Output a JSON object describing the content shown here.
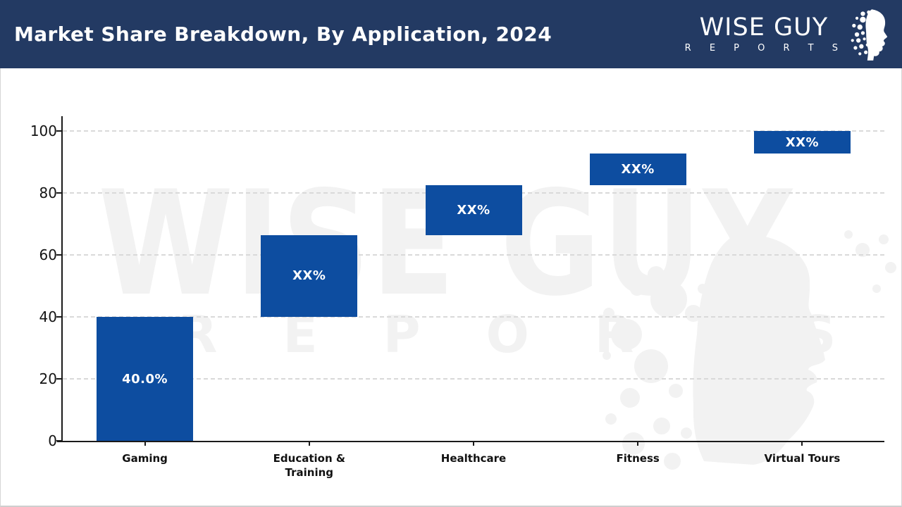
{
  "header": {
    "title": "Market Share Breakdown, By Application, 2024",
    "background_color": "#233A63",
    "logo": {
      "line1": "WISE GUY",
      "line2": "R E P O R T S"
    }
  },
  "watermark": {
    "line1": "WISE GUY",
    "line2": "R E P O R T S"
  },
  "chart_data": {
    "type": "bar",
    "subtype": "waterfall",
    "title": "Market Share Breakdown, By Application, 2024",
    "categories": [
      "Gaming",
      "Education &\nTraining",
      "Healthcare",
      "Fitness",
      "Virtual Tours"
    ],
    "segments": [
      {
        "category": "Gaming",
        "start": 0,
        "end": 40,
        "label": "40.0%"
      },
      {
        "category": "Education & Training",
        "start": 40,
        "end": 66.4,
        "label": "XX%"
      },
      {
        "category": "Healthcare",
        "start": 66.4,
        "end": 82.5,
        "label": "XX%"
      },
      {
        "category": "Fitness",
        "start": 82.5,
        "end": 92.7,
        "label": "XX%"
      },
      {
        "category": "Virtual Tours",
        "start": 92.7,
        "end": 100,
        "label": "XX%"
      }
    ],
    "yticks": [
      0,
      20,
      40,
      60,
      80,
      100
    ],
    "ylim": [
      0,
      100
    ],
    "bar_color": "#0D4DA0",
    "grid": "horizontal-dashed",
    "legend": "none"
  }
}
